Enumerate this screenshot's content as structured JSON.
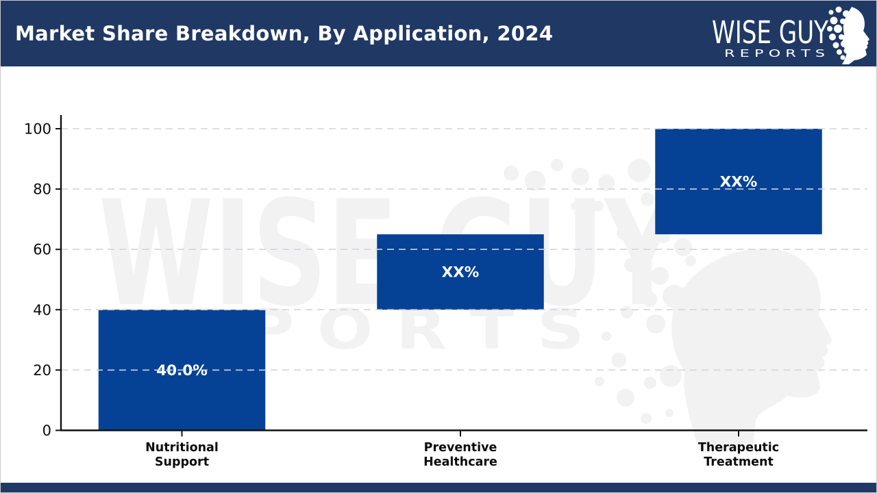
{
  "header": {
    "title": "Market Share Breakdown, By Application, 2024",
    "logo": {
      "line1": "WISE GUY",
      "line2": "R E P O R T S"
    }
  },
  "watermark": {
    "line1": "WISE GUY",
    "line2": "R E P O R T S"
  },
  "colors": {
    "header_bg": "#203864",
    "bar": "#054296",
    "grid": "#d2d5d8",
    "axis": "#111111",
    "watermark": "#f2f2f3",
    "bar_label_text": "#ffffff",
    "tick_text": "#0c0c0c"
  },
  "chart_data": {
    "type": "bar",
    "variant": "waterfall",
    "title": "Market Share Breakdown, By Application, 2024",
    "categories": [
      "Nutritional Support",
      "Preventive Healthcare",
      "Therapeutic Treatment"
    ],
    "category_lines": [
      [
        "Nutritional",
        "Support"
      ],
      [
        "Preventive",
        "Healthcare"
      ],
      [
        "Therapeutic",
        "Treatment"
      ]
    ],
    "segments": [
      {
        "category": "Nutritional Support",
        "from": 0,
        "to": 40,
        "label": "40.0%"
      },
      {
        "category": "Preventive Healthcare",
        "from": 40,
        "to": 65,
        "label": "XX%"
      },
      {
        "category": "Therapeutic Treatment",
        "from": 65,
        "to": 100,
        "label": "XX%"
      }
    ],
    "yticks": [
      0,
      20,
      40,
      60,
      80,
      100
    ],
    "ylim": [
      0,
      100
    ],
    "xlabel": "",
    "ylabel": "",
    "legend": "none",
    "grid": {
      "horizontal": true,
      "style": "dashed",
      "over_bars": true
    },
    "bar_color": "#054296"
  }
}
